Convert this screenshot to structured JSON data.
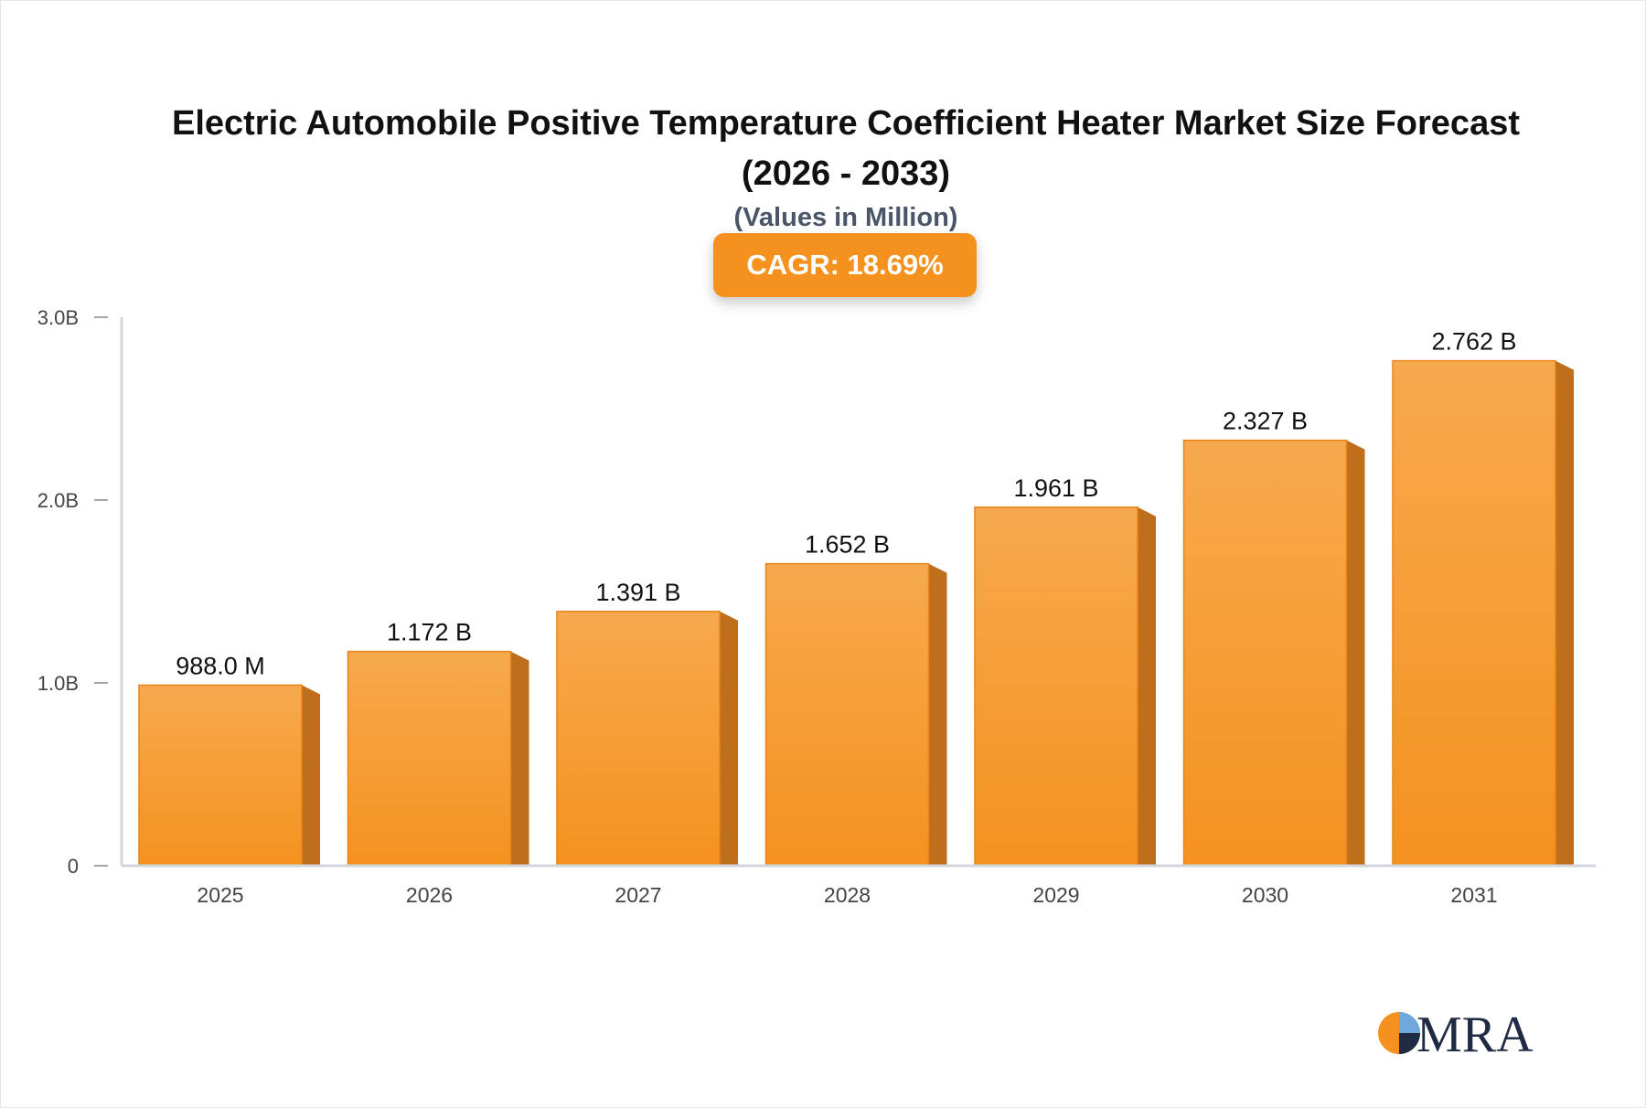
{
  "header": {
    "title_line1": "Electric Automobile Positive Temperature Coefficient Heater Market Size Forecast",
    "title_line2": "(2026 - 2033)",
    "subtitle": "(Values in Million)",
    "cagr": "CAGR: 18.69%"
  },
  "logo": {
    "text": "MRA"
  },
  "colors": {
    "bar_top": "#f6a94e",
    "bar_bottom": "#f5921f",
    "bar_side": "#bf6f1c",
    "badge": "#f5921f",
    "axis": "#d0d4dc",
    "tick_text": "#444444",
    "label_text": "#111111"
  },
  "chart_data": {
    "type": "bar",
    "categories": [
      "2025",
      "2026",
      "2027",
      "2028",
      "2029",
      "2030",
      "2031"
    ],
    "values": [
      988.0,
      1172,
      1391,
      1652,
      1961,
      2327,
      2762
    ],
    "value_labels": [
      "988.0 M",
      "1.172 B",
      "1.391 B",
      "1.652 B",
      "1.961 B",
      "2.327 B",
      "2.762 B"
    ],
    "unit": "Million",
    "ylim": [
      0,
      3000
    ],
    "yticks": [
      0,
      1000,
      2000,
      3000
    ],
    "ytick_labels": [
      "0",
      "1.0B",
      "2.0B",
      "3.0B"
    ],
    "grid": false,
    "legend": false
  }
}
